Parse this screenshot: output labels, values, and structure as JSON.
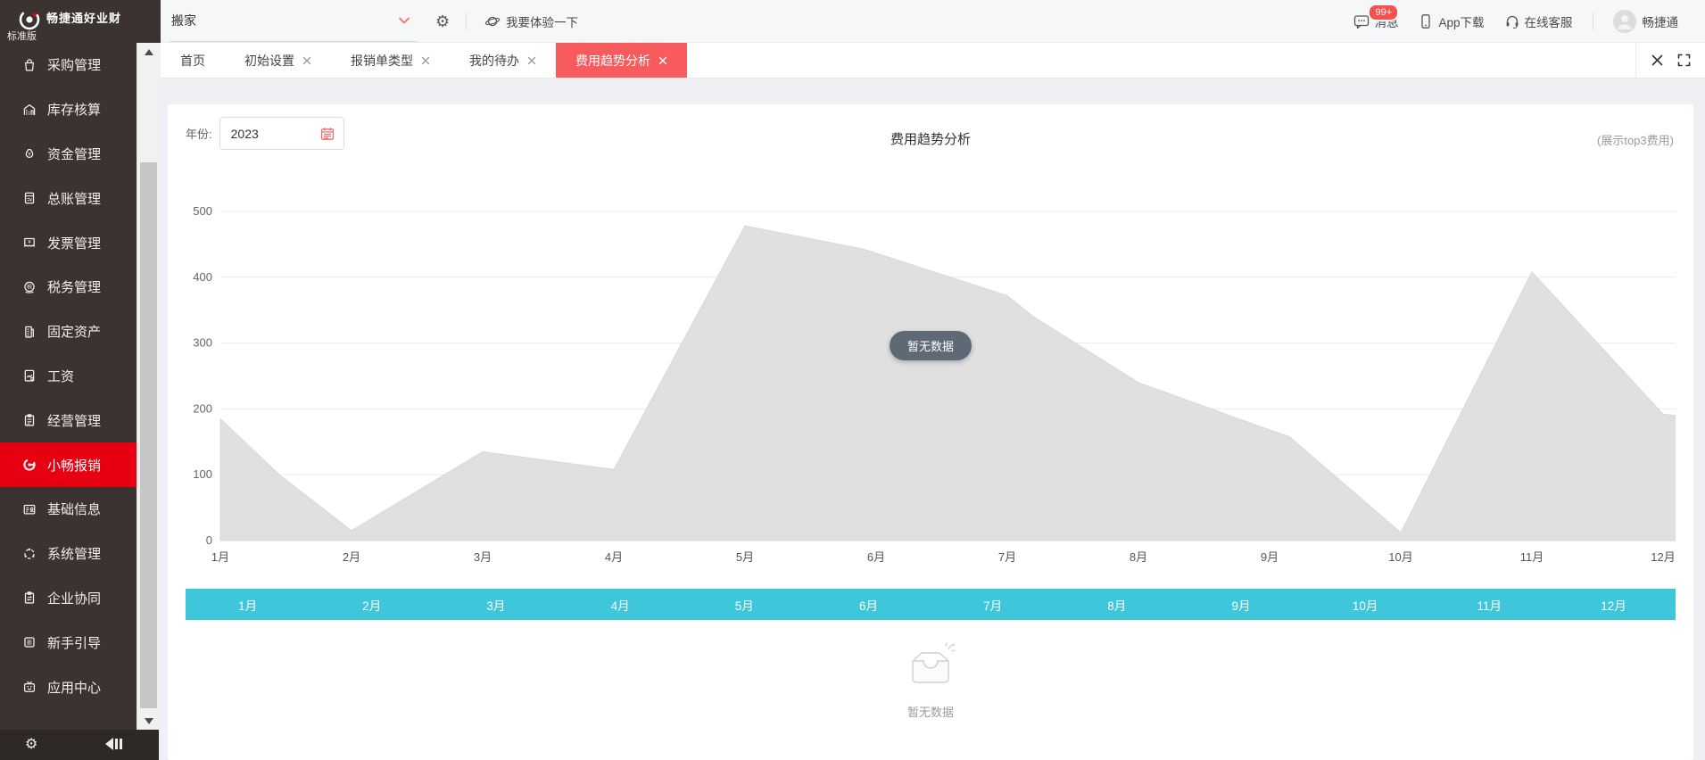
{
  "header": {
    "brand": "畅捷通好业财",
    "edition": "标准版",
    "workspace_select": {
      "value": "搬家"
    },
    "experience_label": "我要体验一下",
    "right": {
      "messages_label": "消息",
      "messages_badge": "99+",
      "app_download_label": "App下载",
      "online_service_label": "在线客服",
      "username": "畅捷通"
    }
  },
  "tabs": {
    "items": [
      {
        "key": "home",
        "label": "首页",
        "closable": false,
        "active": false
      },
      {
        "key": "initial-settings",
        "label": "初始设置",
        "closable": true,
        "active": false
      },
      {
        "key": "expense-form-type",
        "label": "报销单类型",
        "closable": true,
        "active": false
      },
      {
        "key": "my-todo",
        "label": "我的待办",
        "closable": true,
        "active": false
      },
      {
        "key": "expense-trend-analysis",
        "label": "费用趋势分析",
        "closable": true,
        "active": true
      }
    ]
  },
  "sidebar": {
    "items": [
      {
        "key": "purchase",
        "label": "采购管理",
        "icon": "shopping-bag",
        "active": false
      },
      {
        "key": "inventory",
        "label": "库存核算",
        "icon": "warehouse",
        "active": false
      },
      {
        "key": "funds",
        "label": "资金管理",
        "icon": "money-bag",
        "active": false
      },
      {
        "key": "general-ledger",
        "label": "总账管理",
        "icon": "ledger",
        "active": false
      },
      {
        "key": "invoice",
        "label": "发票管理",
        "icon": "invoice",
        "active": false
      },
      {
        "key": "tax",
        "label": "税务管理",
        "icon": "tax-seal",
        "active": false
      },
      {
        "key": "fixed-assets",
        "label": "固定资产",
        "icon": "building",
        "active": false
      },
      {
        "key": "salary",
        "label": "工资",
        "icon": "salary-doc",
        "active": false
      },
      {
        "key": "operations",
        "label": "经营管理",
        "icon": "clipboard",
        "active": false
      },
      {
        "key": "xiaochang-expense",
        "label": "小畅报销",
        "icon": "reimburse-logo",
        "active": true
      },
      {
        "key": "basic-info",
        "label": "基础信息",
        "icon": "id-card",
        "active": false
      },
      {
        "key": "system",
        "label": "系统管理",
        "icon": "sync-circle",
        "active": false
      },
      {
        "key": "enterprise-collab",
        "label": "企业协同",
        "icon": "clipboard-arrows",
        "active": false
      },
      {
        "key": "newbie-guide",
        "label": "新手引导",
        "icon": "new-badge",
        "active": false
      },
      {
        "key": "app-center",
        "label": "应用中心",
        "icon": "tv-smile",
        "active": false
      }
    ]
  },
  "content": {
    "year_label": "年份:",
    "year_value": "2023",
    "chart_title": "费用趋势分析",
    "top3_note": "(展示top3费用)",
    "tooltip_text": "暂无数据",
    "empty_text": "暂无数据",
    "months_bar": [
      "1月",
      "2月",
      "3月",
      "4月",
      "5月",
      "6月",
      "7月",
      "8月",
      "9月",
      "10月",
      "11月",
      "12月"
    ]
  },
  "chart_data": {
    "type": "area",
    "title": "费用趋势分析",
    "categories": [
      "1月",
      "2月",
      "3月",
      "4月",
      "5月",
      "6月",
      "7月",
      "8月",
      "9月",
      "10月",
      "11月",
      "12月"
    ],
    "values": [
      185,
      15,
      135,
      108,
      478,
      443,
      372,
      240,
      168,
      12,
      408,
      192
    ],
    "shape_points": [
      [
        1,
        185
      ],
      [
        1.45,
        100
      ],
      [
        2,
        15
      ],
      [
        2.5,
        75
      ],
      [
        3,
        135
      ],
      [
        4,
        108
      ],
      [
        5,
        478
      ],
      [
        5.9,
        443
      ],
      [
        7,
        372
      ],
      [
        7.2,
        340
      ],
      [
        8,
        240
      ],
      [
        9,
        168
      ],
      [
        9.15,
        158
      ],
      [
        10,
        12
      ],
      [
        11,
        408
      ],
      [
        12,
        192
      ],
      [
        12.2,
        190
      ]
    ],
    "xlabel": "",
    "ylabel": "",
    "ylim": [
      0,
      500
    ],
    "yticks": [
      0,
      100,
      200,
      300,
      400,
      500
    ],
    "grid": true,
    "legend": "none",
    "area_color": "#e0e0e0",
    "grid_color": "#e9ebee",
    "no_data_label": "暂无数据"
  },
  "colors": {
    "sidebar_bg": "#3a3330",
    "active_red": "#e60012",
    "tab_red": "#f85b5d",
    "badge_red": "#f84f4f",
    "cyan_bar": "#3ec6da"
  }
}
